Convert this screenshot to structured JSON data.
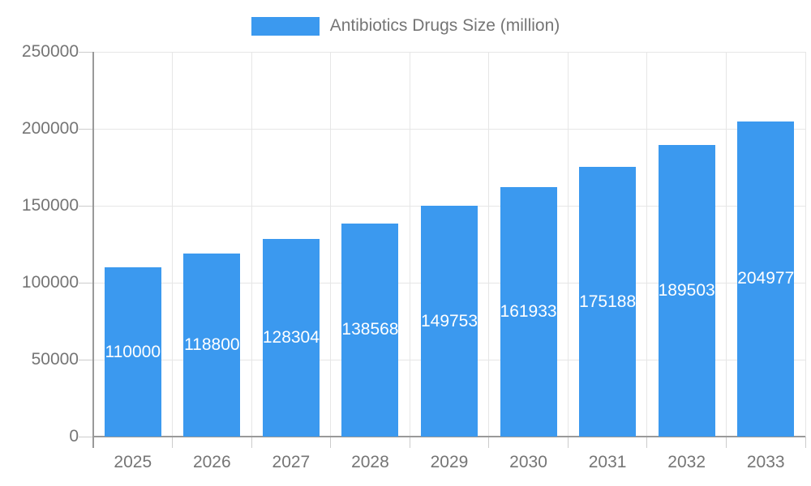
{
  "legend": {
    "label": "Antibiotics Drugs Size (million)"
  },
  "colors": {
    "bar": "#3b99ef",
    "axis": "#999999",
    "grid": "#e6e6e6",
    "tick": "#cccccc",
    "text": "#757575",
    "value_label": "#ffffff",
    "background": "#ffffff"
  },
  "chart_data": {
    "type": "bar",
    "title": "",
    "xlabel": "",
    "ylabel": "",
    "categories": [
      "2025",
      "2026",
      "2027",
      "2028",
      "2029",
      "2030",
      "2031",
      "2032",
      "2033"
    ],
    "series": [
      {
        "name": "Antibiotics Drugs Size (million)",
        "values": [
          110000,
          118800,
          128304,
          138568,
          149753,
          161933,
          175188,
          189503,
          204977
        ]
      }
    ],
    "bar_value_labels": [
      110000,
      118800,
      128304,
      138568,
      149753,
      161933,
      175188,
      189503,
      204977
    ],
    "ylim": [
      0,
      250000
    ],
    "yticks": [
      0,
      50000,
      100000,
      150000,
      200000,
      250000
    ],
    "grid": true,
    "legend_position": "top"
  }
}
